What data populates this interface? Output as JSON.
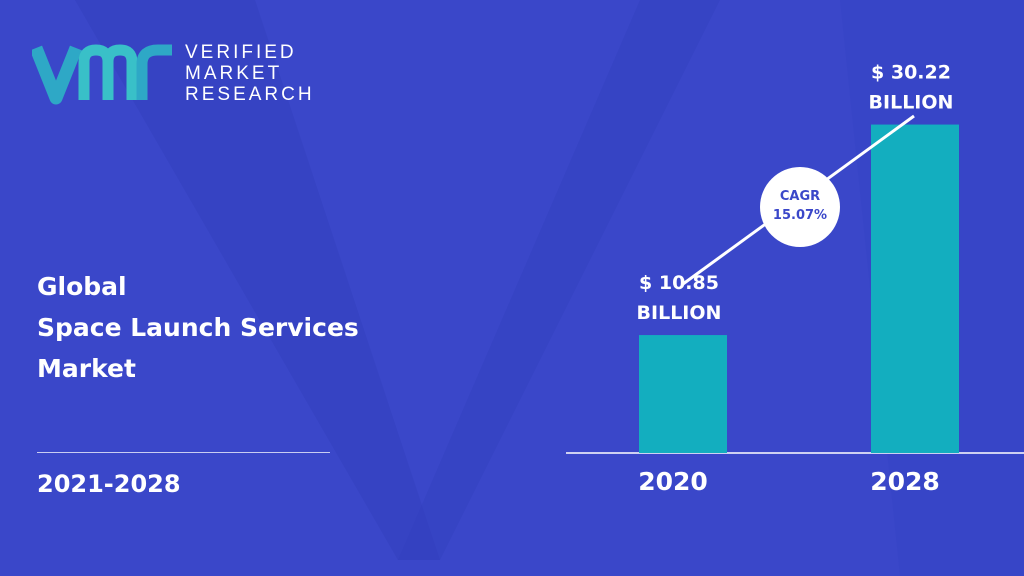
{
  "brand": {
    "lines": [
      "VERIFIED",
      "MARKET",
      "RESEARCH"
    ],
    "logo_colors": [
      "#2ea8c6",
      "#39c0c8"
    ]
  },
  "title_lines": [
    "Global",
    "Space Launch Services",
    "Market"
  ],
  "period": "2021-2028",
  "colors": {
    "background": "#3a47c9",
    "bar": "#13aebf",
    "text": "#ffffff",
    "cagr_text": "#3a47c9"
  },
  "chart_data": {
    "type": "bar",
    "categories": [
      "2020",
      "2028"
    ],
    "values": [
      10.85,
      30.22
    ],
    "value_labels": [
      [
        "$ 10.85",
        "BILLION"
      ],
      [
        "$ 30.22",
        "BILLION"
      ]
    ],
    "ylim": [
      0,
      38
    ],
    "annotation": {
      "lines": [
        "CAGR",
        "15.07%"
      ]
    }
  }
}
